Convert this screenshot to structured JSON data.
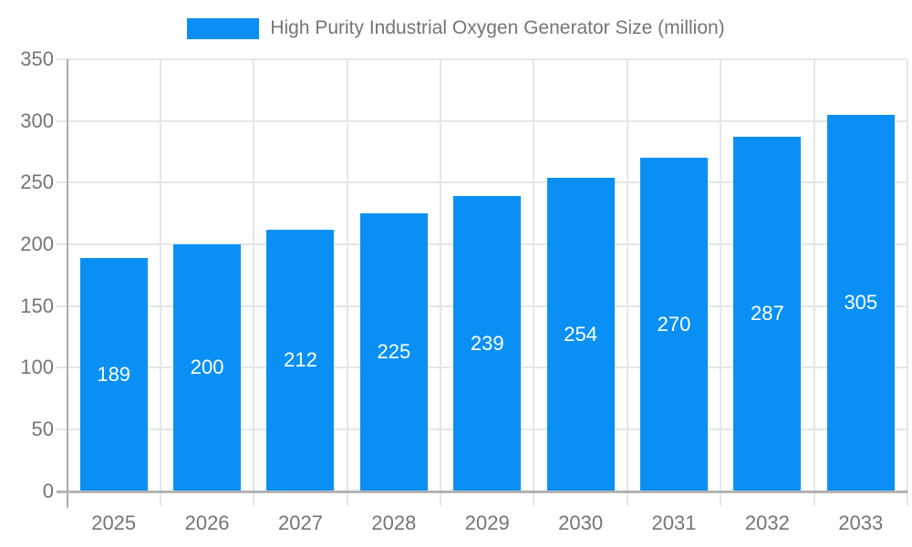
{
  "chart_data": {
    "type": "bar",
    "title": "High Purity Industrial Oxygen Generator Size (million)",
    "categories": [
      "2025",
      "2026",
      "2027",
      "2028",
      "2029",
      "2030",
      "2031",
      "2032",
      "2033"
    ],
    "values": [
      189,
      200,
      212,
      225,
      239,
      254,
      270,
      287,
      305
    ],
    "series": [
      {
        "name": "High Purity Industrial Oxygen Generator Size (million)",
        "values": [
          189,
          200,
          212,
          225,
          239,
          254,
          270,
          287,
          305
        ]
      }
    ],
    "xlabel": "",
    "ylabel": "",
    "ylim": [
      0,
      350
    ],
    "yticks": [
      0,
      50,
      100,
      150,
      200,
      250,
      300,
      350
    ],
    "grid": true,
    "legend_position": "top",
    "value_label_position": "inside-center",
    "colors": {
      "bar": "#0a90f5",
      "value_label": "#ffffff",
      "axis_text": "#757575",
      "legend_text": "#757575",
      "gridline": "#e6e6e6",
      "axis_line": "#ababab",
      "baseline": "#b3b3b3"
    }
  }
}
